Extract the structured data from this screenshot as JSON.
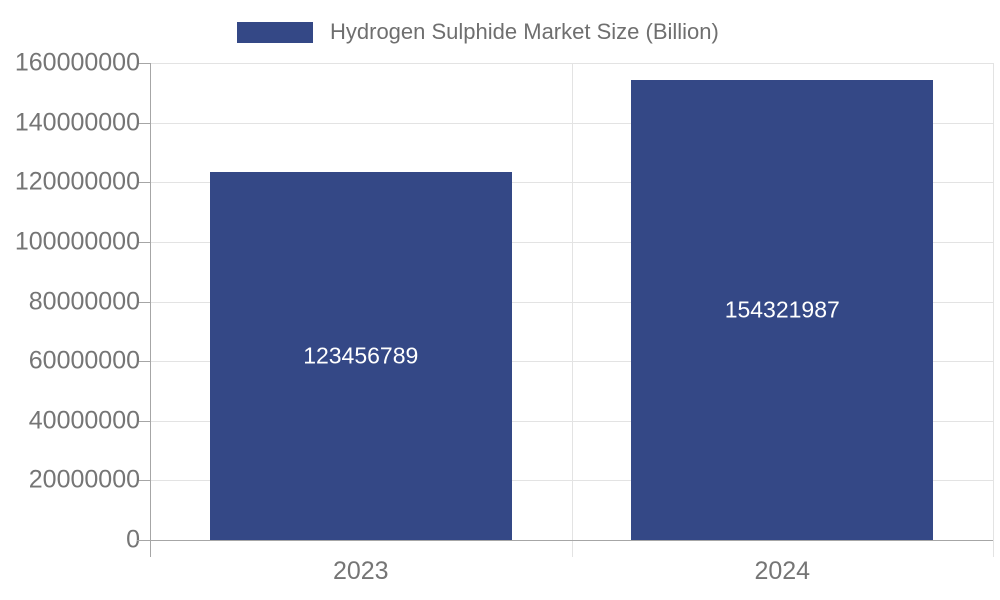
{
  "legend": {
    "label": "Hydrogen Sulphide Market Size (Billion)"
  },
  "chart_data": {
    "type": "bar",
    "title": "",
    "series_name": "Hydrogen Sulphide Market Size (Billion)",
    "categories": [
      "2023",
      "2024"
    ],
    "values": [
      123456789,
      154321987
    ],
    "bar_labels": [
      "123456789",
      "154321987"
    ],
    "xlabel": "",
    "ylabel": "",
    "ylim": [
      0,
      160000000
    ],
    "ytick_step": 20000000,
    "yticks": [
      0,
      20000000,
      40000000,
      60000000,
      80000000,
      100000000,
      120000000,
      140000000,
      160000000
    ],
    "grid": true,
    "legend_position": "top-center",
    "colors": {
      "bar": "#344886",
      "axis_line": "#a6a6a6",
      "grid_line": "#e3e3e3",
      "tick_label": "#757575",
      "bar_label": "#ffffff",
      "legend_text": "#6f6f6f"
    }
  }
}
